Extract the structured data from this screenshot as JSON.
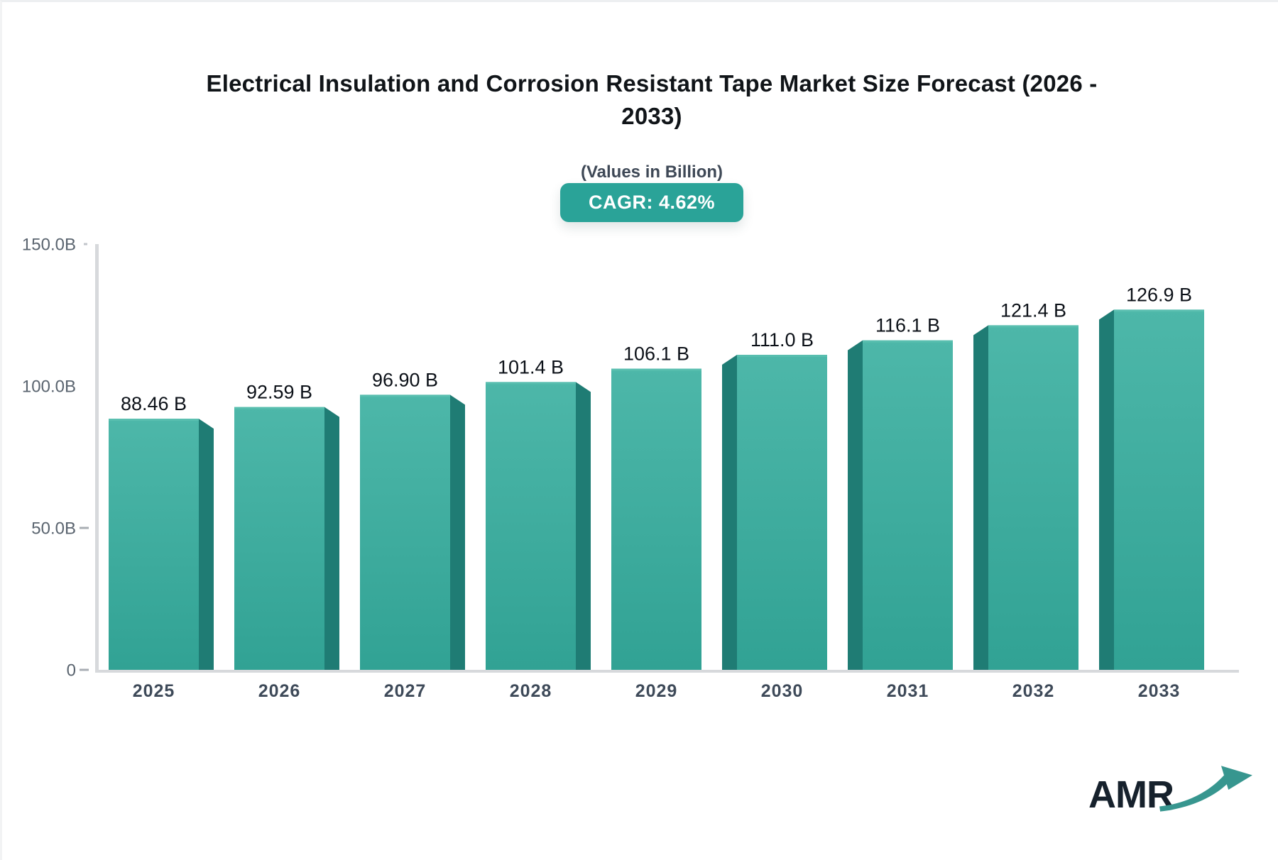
{
  "header": {
    "title_lines": [
      "Electrical Insulation and Corrosion Resistant Tape Market Size Forecast (2026 -",
      "2033)"
    ],
    "subtitle": "(Values in Billion)",
    "cagr_badge": "CAGR: 4.62%"
  },
  "chart_data": {
    "type": "bar",
    "title": "Electrical Insulation and Corrosion Resistant Tape Market Size Forecast (2026 - 2033)",
    "subtitle": "(Values in Billion)",
    "cagr": "4.62%",
    "categories": [
      "2025",
      "2026",
      "2027",
      "2028",
      "2029",
      "2030",
      "2031",
      "2032",
      "2033"
    ],
    "values": [
      88.46,
      92.59,
      96.9,
      101.4,
      106.1,
      111.0,
      116.1,
      121.4,
      126.9
    ],
    "value_labels": [
      "88.46 B",
      "92.59 B",
      "96.90 B",
      "101.4 B",
      "106.1 B",
      "111.0 B",
      "116.1 B",
      "121.4 B",
      "126.9 B"
    ],
    "xlabel": "",
    "ylabel": "",
    "ylim": [
      0,
      150
    ],
    "y_ticks": [
      {
        "label": "0",
        "value": 0,
        "dash": "line"
      },
      {
        "label": "50.0B",
        "value": 50,
        "dash": "line"
      },
      {
        "label": "100.0B",
        "value": 100,
        "dash": "none"
      },
      {
        "label": "150.0B",
        "value": 150,
        "dash": "dot"
      }
    ],
    "grid": false,
    "legend": false,
    "colors": {
      "bar_face_top": "#4db7a9",
      "bar_face_bottom": "#31a294",
      "bar_top_edge": "#5ac0b1",
      "bar_side": "#1f7c74",
      "axis_line": "#d7d9dc",
      "tick_label": "#5a646f",
      "x_label": "#3e4a59",
      "value_label": "#0c1118"
    }
  },
  "logo": {
    "text": "AMR",
    "arrow_icon_color": "#37968f"
  }
}
